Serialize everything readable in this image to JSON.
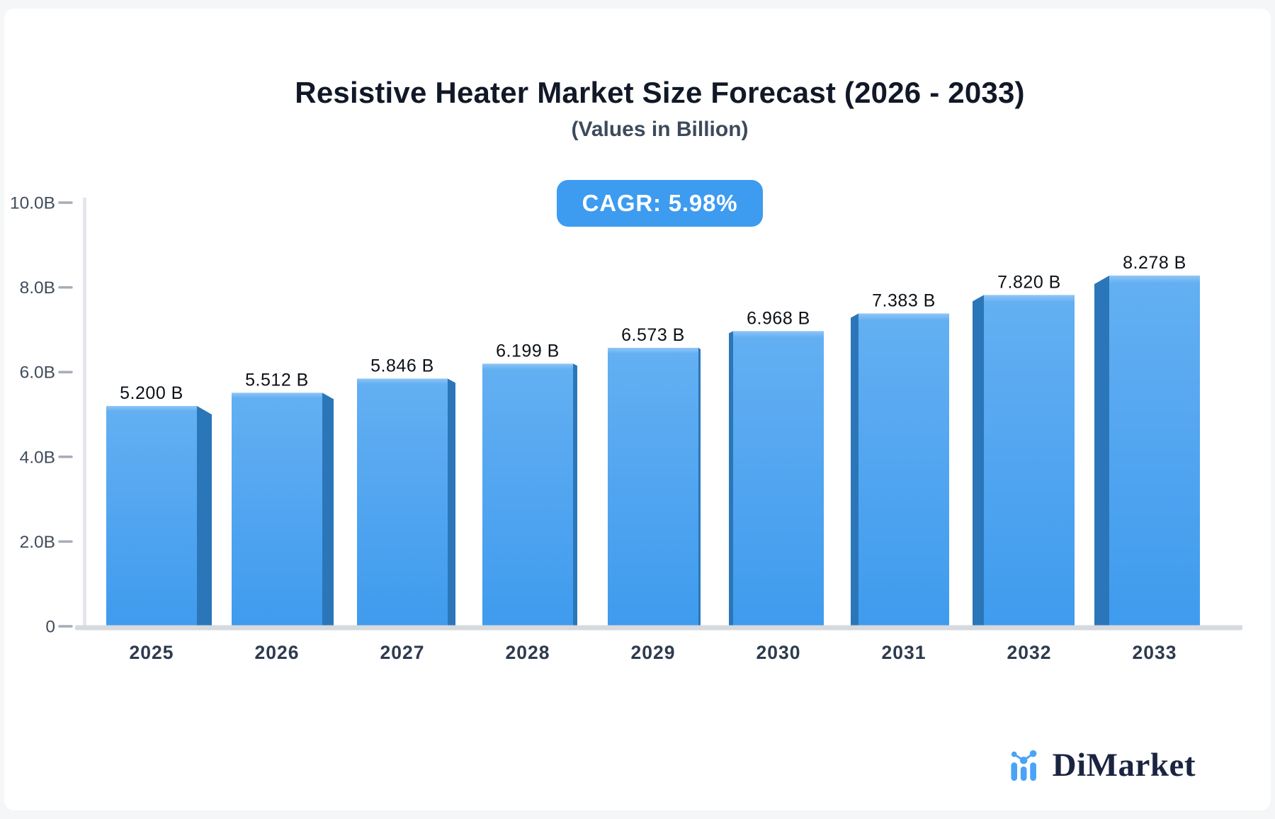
{
  "page": {
    "background": "#f4f6f8",
    "card_background": "#ffffff"
  },
  "header": {
    "title": "Resistive Heater Market Size Forecast (2026 - 2033)",
    "subtitle": "(Values in Billion)"
  },
  "badge": {
    "label": "CAGR: 5.98%",
    "background": "#3d9bf0",
    "text_color": "#ffffff"
  },
  "chart_data": {
    "type": "bar",
    "title": "Resistive Heater Market Size Forecast (2026 - 2033)",
    "subtitle": "(Values in Billion)",
    "annotation": "CAGR: 5.98%",
    "unit": "Billion",
    "categories": [
      "2025",
      "2026",
      "2027",
      "2028",
      "2029",
      "2030",
      "2031",
      "2032",
      "2033"
    ],
    "values": [
      5.2,
      5.512,
      5.846,
      6.199,
      6.573,
      6.968,
      7.383,
      7.82,
      8.278
    ],
    "value_labels": [
      "5.200 B",
      "5.512 B",
      "5.846 B",
      "6.199 B",
      "6.573 B",
      "6.968 B",
      "7.383 B",
      "7.820 B",
      "8.278 B"
    ],
    "ylim": [
      0,
      10
    ],
    "y_ticks": [
      {
        "value": 0,
        "label": "0"
      },
      {
        "value": 2,
        "label": "2.0B"
      },
      {
        "value": 4,
        "label": "4.0B"
      },
      {
        "value": 6,
        "label": "6.0B"
      },
      {
        "value": 8,
        "label": "8.0B"
      },
      {
        "value": 10,
        "label": "10.0B"
      }
    ],
    "grid": false,
    "legend": false,
    "bar_style": "3d-extruded, side faces angle toward center bar",
    "colors": {
      "front_highlight": "#8fc5f6",
      "front_top": "#63aff2",
      "front_bottom": "#3f9bee",
      "side": "#2b76b8",
      "axis_line": "#e3e6ea",
      "baseline": "#d6dade",
      "tick": "#a6adb8",
      "tick_text": "#414c5b",
      "year_text": "#2e3a4e",
      "value_text": "#0c1117"
    }
  },
  "logo": {
    "text": "DiMarket",
    "icon": "bar-chart-with-trendline-icon",
    "icon_color": "#4aa3f7",
    "text_color": "#1b2440"
  }
}
